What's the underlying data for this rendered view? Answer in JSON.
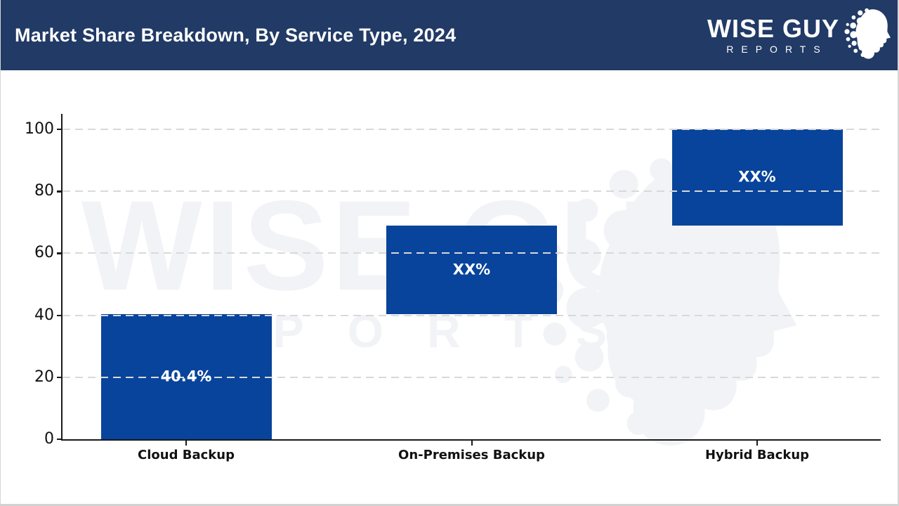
{
  "header": {
    "title": "Market Share Breakdown, By Service Type, 2024",
    "logo": {
      "brand": "WISE GUY",
      "sub": "REPORTS"
    }
  },
  "watermark": {
    "brand": "WISE GUY",
    "sub": "REPORTS"
  },
  "chart_data": {
    "type": "bar",
    "variant": "floating-segment-bars",
    "title": "Market Share Breakdown, By Service Type, 2024",
    "categories": [
      "Cloud Backup",
      "On-Premises Backup",
      "Hybrid Backup"
    ],
    "series": [
      {
        "name": "Cloud Backup",
        "start": 0,
        "end": 40.4,
        "label": "40.4%"
      },
      {
        "name": "On-Premises Backup",
        "start": 40.4,
        "end": 69,
        "label": "XX%"
      },
      {
        "name": "Hybrid Backup",
        "start": 69,
        "end": 100,
        "label": "XX%"
      }
    ],
    "yticks": [
      0,
      20,
      40,
      60,
      80,
      100
    ],
    "ylim": [
      0,
      104
    ],
    "xlabel": "",
    "ylabel": "",
    "legend": "none",
    "grid": "horizontal-dashed"
  },
  "colors": {
    "header_bg": "#213A66",
    "bar": "#08449B",
    "bar_label": "#FFFFFF",
    "grid": "#D9D9D9",
    "axis": "#1A1A1A",
    "watermark": "#F2F3F6"
  }
}
